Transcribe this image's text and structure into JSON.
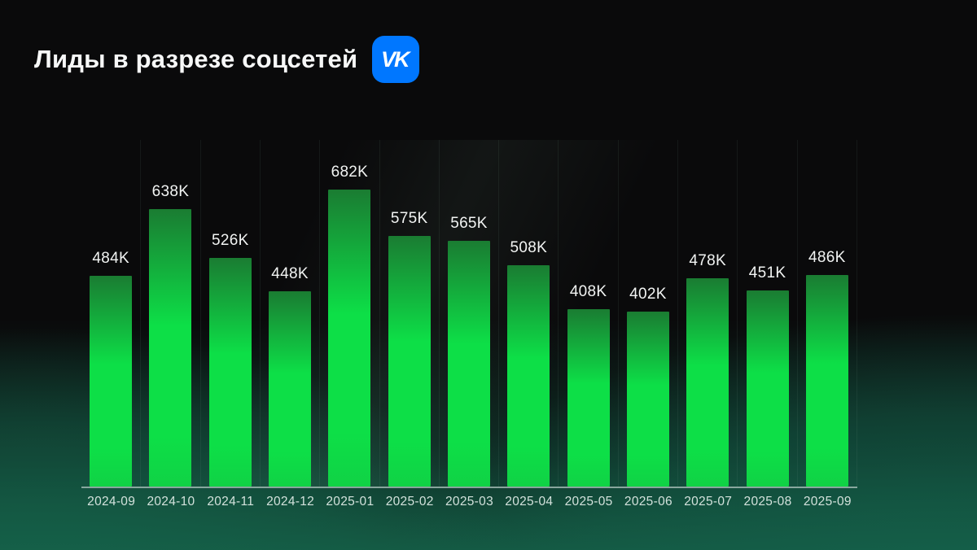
{
  "header": {
    "title": "Лиды в разрезе соцсетей",
    "logo": {
      "name": "vk-logo",
      "text": "VK",
      "background": "#0077FF",
      "foreground": "#FFFFFF"
    }
  },
  "chart_data": {
    "type": "bar",
    "title": "Лиды в разрезе соцсетей",
    "categories": [
      "2024-09",
      "2024-10",
      "2024-11",
      "2024-12",
      "2025-01",
      "2025-02",
      "2025-03",
      "2025-04",
      "2025-05",
      "2025-06",
      "2025-07",
      "2025-08",
      "2025-09"
    ],
    "values": [
      484,
      638,
      526,
      448,
      682,
      575,
      565,
      508,
      408,
      402,
      478,
      451,
      486
    ],
    "value_labels": [
      "484K",
      "638K",
      "526K",
      "448K",
      "682K",
      "575K",
      "565K",
      "508K",
      "408K",
      "402K",
      "478K",
      "451K",
      "486K"
    ],
    "unit": "K",
    "xlabel": "",
    "ylabel": "",
    "ylim": [
      0,
      800
    ],
    "grid": "faint-vertical-column-separators",
    "legend": "none",
    "colors": {
      "bar_top": "#1a7c32",
      "bar_bright": "#0ddf47",
      "bar_bottom": "#10d245",
      "axis_line": "#9eb6af",
      "value_label": "#f2f4f3",
      "tick_label": "#d3e2dc",
      "background_top": "#0a0a0b",
      "background_bottom": "#145741"
    }
  }
}
